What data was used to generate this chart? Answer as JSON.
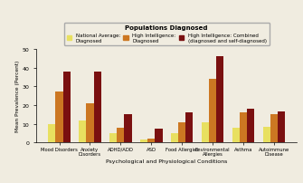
{
  "title": "Populations Diagnosed",
  "xlabel": "Psychological and Physiological Conditions",
  "ylabel": "Mean Prevalence (Percent)",
  "categories": [
    "Mood Disorders",
    "Anxiety\nDisorders",
    "ADHD/ADD",
    "ASD",
    "Food Allergies",
    "Environmental\nAllergies",
    "Asthma",
    "Autoimmune\nDisease"
  ],
  "national_avg": [
    10,
    12,
    5,
    1.5,
    5,
    11,
    8,
    8.5
  ],
  "hi_diagnosed": [
    27,
    21,
    8,
    2,
    11,
    34,
    16,
    15
  ],
  "hi_combined": [
    38,
    38,
    15,
    7.5,
    16,
    46,
    18,
    16.5
  ],
  "color_national": "#e8e060",
  "color_hi_diag": "#cc7722",
  "color_hi_comb": "#7a1010",
  "legend_labels": [
    "National Average:\nDiagnosed",
    "High Intelligence:\nDiagnosed",
    "High Intelligence: Combined\n(diagnosed and self-diagnosed)"
  ],
  "ylim": [
    0,
    50
  ],
  "yticks": [
    0,
    10,
    20,
    30,
    40,
    50
  ],
  "bg_color": "#f0ece0"
}
